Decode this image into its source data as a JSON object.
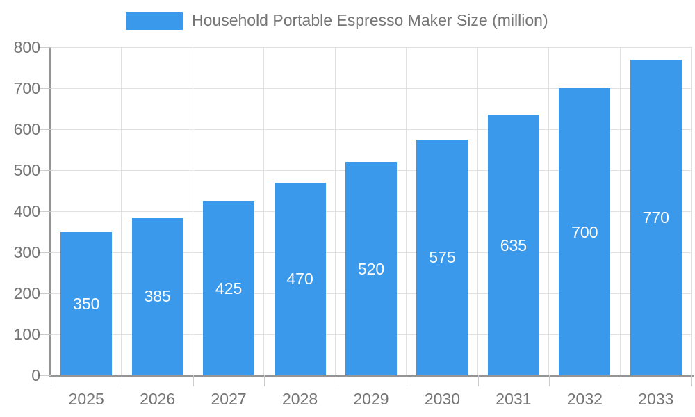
{
  "chart_data": {
    "type": "bar",
    "title": "Household Portable Espresso Maker Size (million)",
    "categories": [
      "2025",
      "2026",
      "2027",
      "2028",
      "2029",
      "2030",
      "2031",
      "2032",
      "2033"
    ],
    "values": [
      350,
      385,
      425,
      470,
      520,
      575,
      635,
      700,
      770
    ],
    "xlabel": "",
    "ylabel": "",
    "ylim": [
      0,
      800
    ],
    "yticks": [
      0,
      100,
      200,
      300,
      400,
      500,
      600,
      700,
      800
    ],
    "grid": true,
    "legend_position": "top",
    "bar_value_labels": "inside-center"
  },
  "legend": {
    "label": "Household Portable Espresso Maker Size (million)"
  },
  "colors": {
    "bar": "#3B99EC",
    "bar_label": "#FFFFFF",
    "axis_line": "#949494",
    "grid_line": "#E0E0E0",
    "tick_line": "#CCCCCC",
    "text": "#757575",
    "background": "#FFFFFF"
  }
}
